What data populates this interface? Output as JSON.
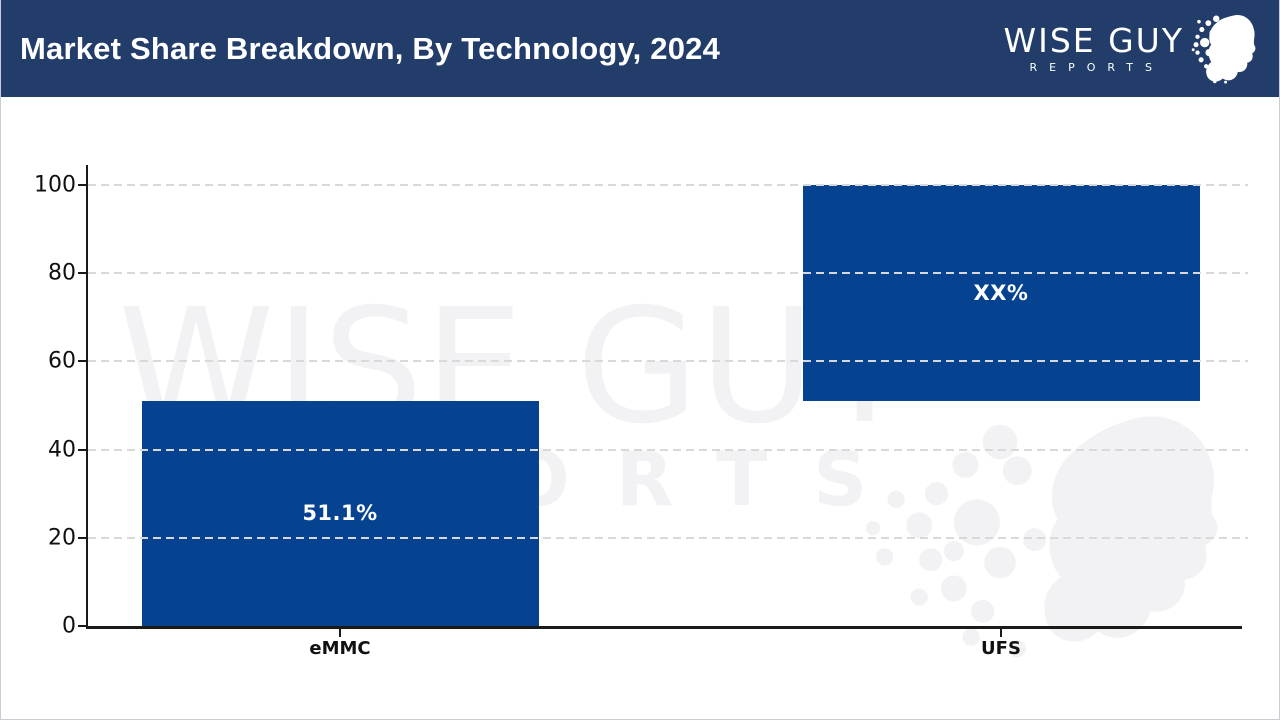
{
  "header": {
    "title": "Market Share Breakdown, By Technology, 2024",
    "logo": {
      "line1": "WISE GUY",
      "line2": "REPORTS",
      "face_icon": "dotted-head-profile"
    }
  },
  "watermark": {
    "line1": "WISE GUY",
    "line2": "REPORTS",
    "face_icon": "dotted-head-profile"
  },
  "chart_data": {
    "type": "bar",
    "title": "Market Share Breakdown, By Technology, 2024",
    "categories": [
      "eMMC",
      "UFS"
    ],
    "bars": [
      {
        "category": "eMMC",
        "from": 0,
        "to": 51.1,
        "label": "51.1%"
      },
      {
        "category": "UFS",
        "from": 51.1,
        "to": 100,
        "label": "XX%"
      }
    ],
    "yticks": [
      0,
      20,
      40,
      60,
      80,
      100
    ],
    "ylim": [
      0,
      104.5
    ],
    "xlabel": "",
    "ylabel": "",
    "grid": "horizontal-dashed",
    "legend_position": "none",
    "bar_color": "#05428F",
    "bar_label_color": "#FFFFFF",
    "note": "UFS segment is stacked from 51.1 to 100; its value is masked as XX%"
  },
  "colors": {
    "header_bg": "#233D6B",
    "header_text": "#FFFFFF",
    "bar": "#05428F",
    "gridline": "#D9D9D9",
    "axis": "#1A1A1A",
    "tick_text": "#111111",
    "watermark": "#F2F2F5",
    "frame_border": "#C9CCD2",
    "background": "#FFFFFF"
  }
}
